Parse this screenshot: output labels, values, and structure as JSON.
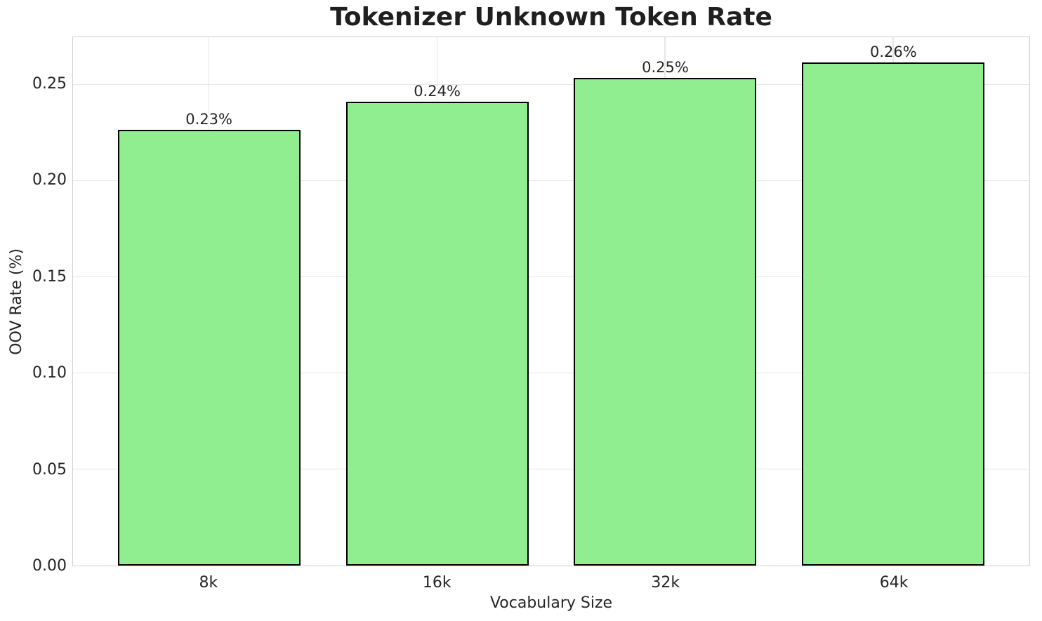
{
  "figure": {
    "background": "#ffffff"
  },
  "chart_data": {
    "type": "bar",
    "title": "Tokenizer Unknown Token Rate",
    "xlabel": "Vocabulary Size",
    "ylabel": "OOV Rate (%)",
    "categories": [
      "8k",
      "16k",
      "32k",
      "64k"
    ],
    "values": [
      0.2265,
      0.2413,
      0.2536,
      0.2616
    ],
    "bar_labels": [
      "0.23%",
      "0.24%",
      "0.25%",
      "0.26%"
    ],
    "yticks": [
      0,
      0.05,
      0.1,
      0.15,
      0.2,
      0.25
    ],
    "ytick_labels": [
      "0.00",
      "0.05",
      "0.10",
      "0.15",
      "0.20",
      "0.25"
    ],
    "ylim": [
      0,
      0.2747
    ],
    "grid": true,
    "legend": "none",
    "colors": {
      "bar_fill": "#90EE90",
      "bar_edge": "#000000",
      "grid_line": "#e7e7e7",
      "spine": "#d0d0d0",
      "text": "#262626",
      "title_text": "#1f1f1f"
    }
  }
}
